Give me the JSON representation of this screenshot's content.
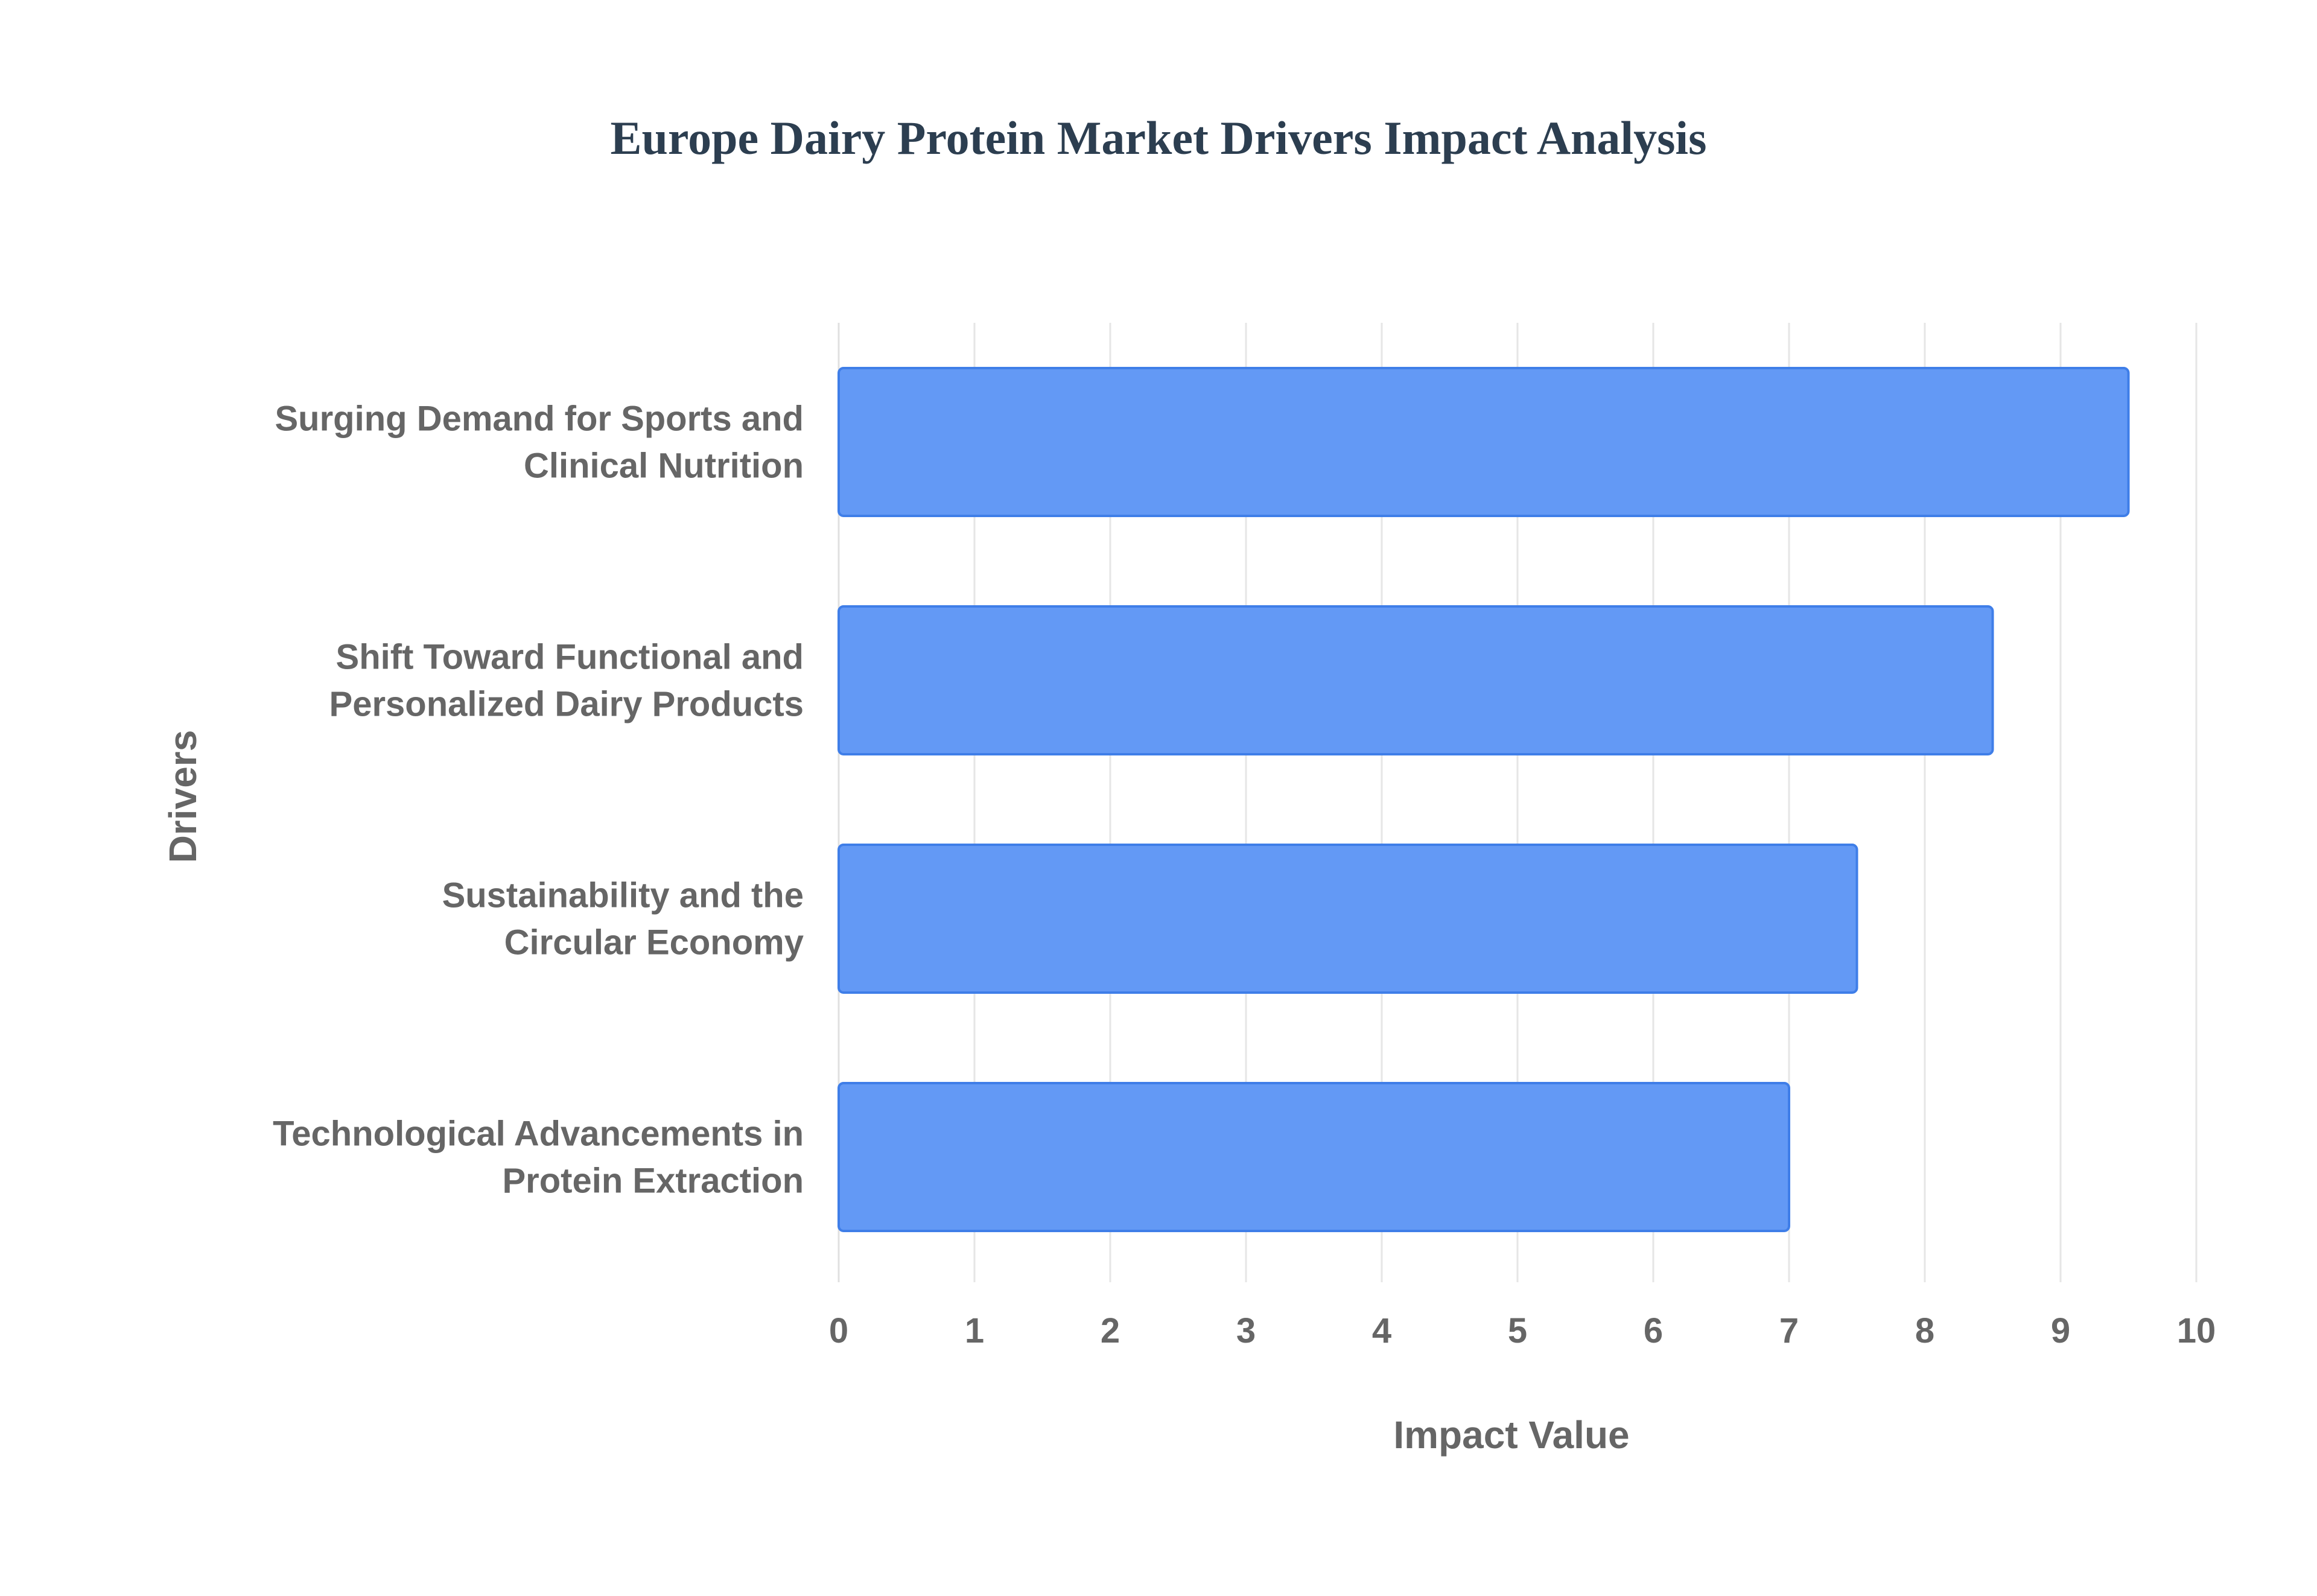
{
  "colors": {
    "bar_fill": "#6399f5",
    "bar_stroke": "#3f7ee8",
    "text": "#666666",
    "title": "#2c3e50",
    "grid": "#e6e6e6"
  },
  "chart_data": {
    "type": "bar",
    "orientation": "horizontal",
    "title": "Europe Dairy Protein Market Drivers Impact Analysis",
    "xlabel": "Impact Value",
    "ylabel": "Drivers",
    "xlim": [
      0,
      10
    ],
    "x_ticks": [
      "0",
      "1",
      "2",
      "3",
      "4",
      "5",
      "6",
      "7",
      "8",
      "9",
      "10"
    ],
    "grid": true,
    "legend": "none",
    "categories": [
      [
        "Surging Demand for Sports and",
        "Clinical Nutrition"
      ],
      [
        "Shift Toward Functional and",
        "Personalized Dairy Products"
      ],
      [
        "Sustainability and the",
        "Circular Economy"
      ],
      [
        "Technological Advancements in",
        "Protein Extraction"
      ]
    ],
    "values": [
      9.5,
      8.5,
      7.5,
      7.0
    ]
  }
}
